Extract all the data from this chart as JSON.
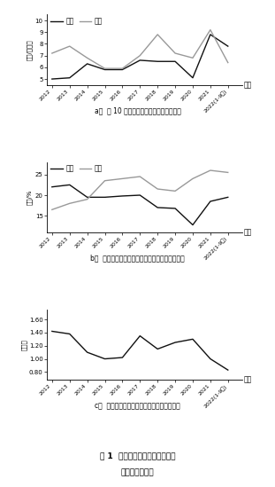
{
  "x_labels": [
    "2012",
    "2013",
    "2014",
    "2015",
    "2016",
    "2017",
    "2018",
    "2019",
    "2020",
    "2021",
    "2022(1-9月)"
  ],
  "x_positions": [
    0,
    1,
    2,
    3,
    4,
    5,
    6,
    7,
    8,
    9,
    10
  ],
  "chart_a": {
    "export": [
      5.0,
      5.1,
      6.3,
      5.8,
      5.8,
      6.6,
      6.5,
      6.5,
      5.1,
      8.8,
      7.8
    ],
    "import": [
      7.2,
      7.8,
      6.8,
      5.9,
      5.9,
      7.0,
      8.8,
      7.2,
      6.8,
      9.2,
      6.4
    ],
    "ylabel": "金额/亿美元",
    "yticks": [
      5,
      6,
      7,
      8,
      9,
      10
    ],
    "ylim": [
      4.5,
      10.5
    ],
    "label": "a）  近 10 年辅助装置及零部件进出口数据"
  },
  "chart_b": {
    "export": [
      22.0,
      22.5,
      19.5,
      19.5,
      19.8,
      20.0,
      17.0,
      16.8,
      12.8,
      18.5,
      19.5
    ],
    "import": [
      16.5,
      18.0,
      19.0,
      23.5,
      24.0,
      24.5,
      21.5,
      21.0,
      24.0,
      26.0,
      25.5
    ],
    "ylabel": "比例/%",
    "yticks": [
      15,
      20,
      25
    ],
    "ylim": [
      11,
      28
    ],
    "label": "b）  辅助装置及零部件进出口占纺机进出口的比例"
  },
  "chart_c": {
    "ratio": [
      1.42,
      1.38,
      1.1,
      1.0,
      1.02,
      1.35,
      1.15,
      1.25,
      1.3,
      1.0,
      0.83
    ],
    "ylabel": "金额比",
    "yticks": [
      0.8,
      1.0,
      1.2,
      1.4,
      1.6
    ],
    "ylim": [
      0.68,
      1.75
    ],
    "label": "c）  辅助装置及零部件不同年度进出口金额比"
  },
  "legend_export": "出口",
  "legend_import": "进口",
  "x_label": "年份",
  "export_color": "#111111",
  "import_color": "#999999",
  "line_width": 1.0,
  "figure_title_line1": "图 1  不同年度辅助装置及零部件",
  "figure_title_line2": "进出口数据曲线",
  "background_color": "#ffffff"
}
